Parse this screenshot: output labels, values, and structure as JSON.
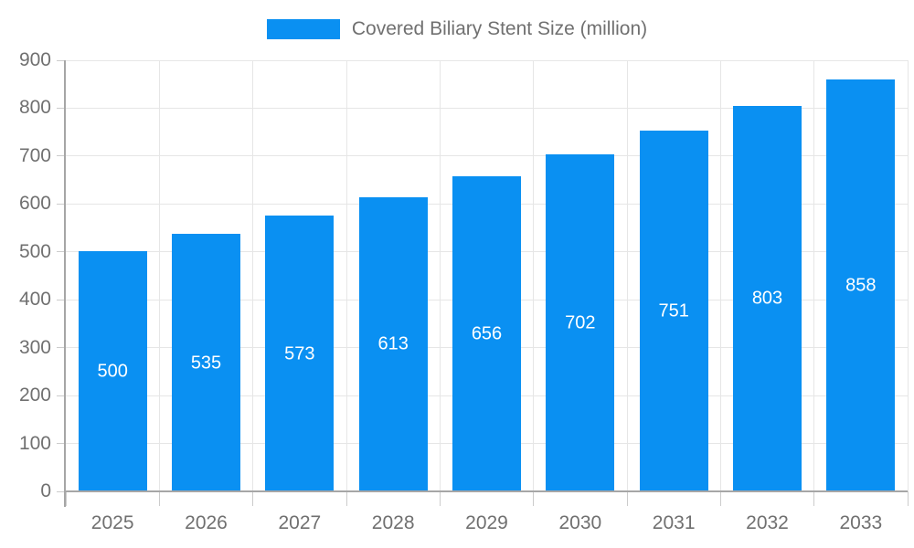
{
  "legend": {
    "items": [
      {
        "label": "Covered Biliary Stent Size (million)",
        "color": "#0a90f2"
      }
    ]
  },
  "chart_data": {
    "type": "bar",
    "title": "Covered Biliary Stent Size (million)",
    "categories": [
      "2025",
      "2026",
      "2027",
      "2028",
      "2029",
      "2030",
      "2031",
      "2032",
      "2033"
    ],
    "values": [
      500,
      535,
      573,
      613,
      656,
      702,
      751,
      803,
      858
    ],
    "series_name": "Covered Biliary Stent Size (million)",
    "xlabel": "",
    "ylabel": "",
    "ylim": [
      0,
      900
    ],
    "y_ticks": [
      0,
      100,
      200,
      300,
      400,
      500,
      600,
      700,
      800,
      900
    ],
    "grid": true,
    "legend_position": "top-center",
    "value_labels": "inside-center",
    "colors": {
      "bar": "#0a90f2",
      "value_label": "#ffffff",
      "axis": "#a6a6a6",
      "gridline": "#e6e6e6",
      "tick": "#cccccc",
      "tick_label": "#707070"
    }
  }
}
